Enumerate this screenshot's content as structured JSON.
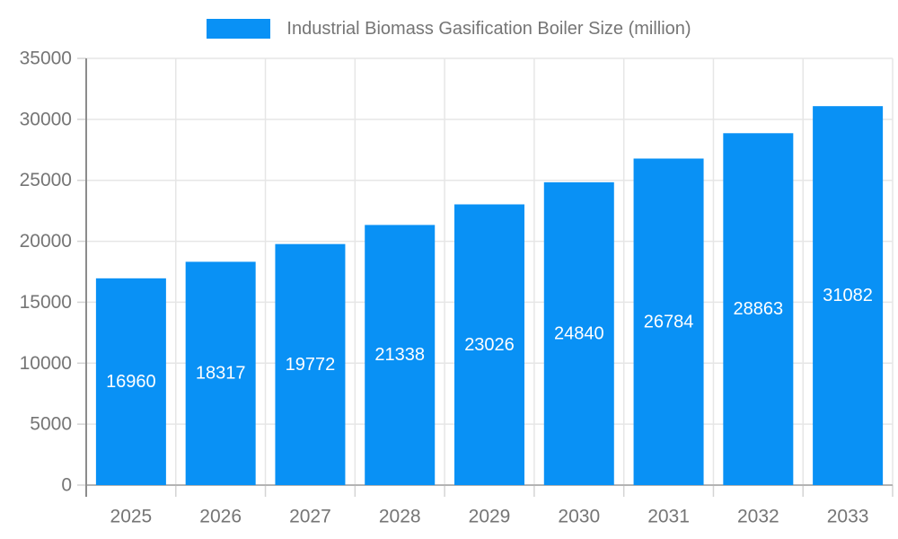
{
  "legend": {
    "label": "Industrial Biomass Gasification Boiler Size (million)"
  },
  "chart_data": {
    "type": "bar",
    "title": "Industrial Biomass Gasification Boiler Size (million)",
    "categories": [
      "2025",
      "2026",
      "2027",
      "2028",
      "2029",
      "2030",
      "2031",
      "2032",
      "2033"
    ],
    "values": [
      16960,
      18317,
      19772,
      21338,
      23026,
      24840,
      26784,
      28863,
      31082
    ],
    "xlabel": "",
    "ylabel": "",
    "ylim": [
      0,
      35000
    ],
    "ytick_step": 5000,
    "grid": true,
    "legend_position": "top",
    "colors": {
      "bar": "#0991f5",
      "data_label": "#ffffff",
      "axis_text": "#757575",
      "grid": "#e6e6e6",
      "tick": "#d4d4d4",
      "y_axis_line": "#8c8c8c",
      "x_axis_line": "#b3b3b3"
    }
  }
}
